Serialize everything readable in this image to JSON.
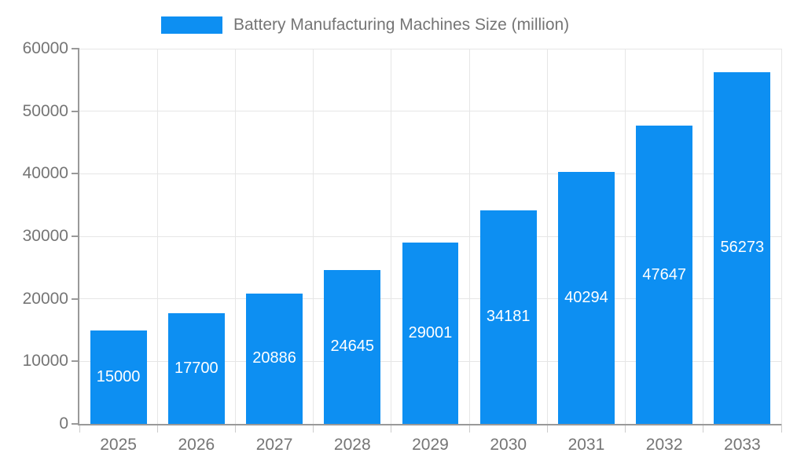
{
  "legend": {
    "label": "Battery Manufacturing Machines Size (million)"
  },
  "colors": {
    "bar": "#0d8ff2",
    "grid": "#e6e6e6",
    "axis": "#999999",
    "x_tick": "#cccccc",
    "text_muted": "#757575",
    "value_text": "#ffffff"
  },
  "chart_data": {
    "type": "bar",
    "title": "Battery Manufacturing Machines Size (million)",
    "series_name": "Battery Manufacturing Machines Size (million)",
    "categories": [
      "2025",
      "2026",
      "2027",
      "2028",
      "2029",
      "2030",
      "2031",
      "2032",
      "2033"
    ],
    "values": [
      15000,
      17700,
      20886,
      24645,
      29001,
      34181,
      40294,
      47647,
      56273
    ],
    "value_labels": [
      "15000",
      "17700",
      "20886",
      "24645",
      "29001",
      "34181",
      "40294",
      "47647",
      "56273"
    ],
    "xlabel": "",
    "ylabel": "",
    "ylim": [
      0,
      60000
    ],
    "ytick_interval": 10000,
    "yticks": [
      "0",
      "10000",
      "20000",
      "30000",
      "40000",
      "50000",
      "60000"
    ],
    "grid": true,
    "legend_position": "top",
    "value_label_style": "inside-center-white"
  }
}
